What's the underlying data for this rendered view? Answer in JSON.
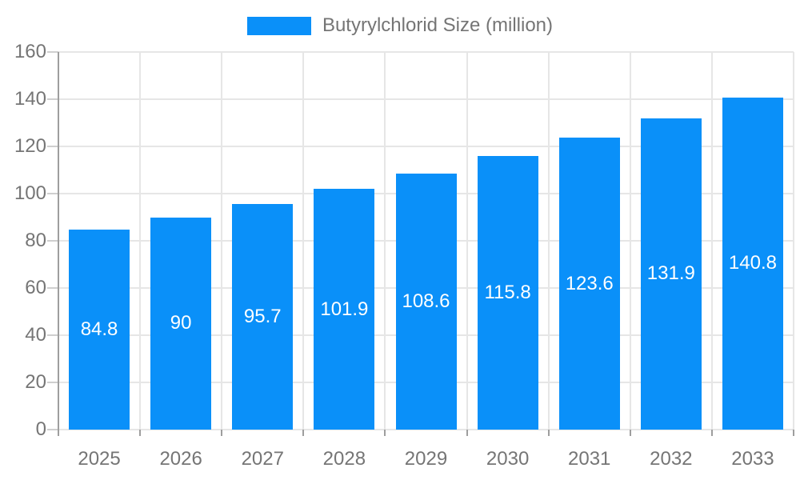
{
  "legend": {
    "label": "Butyrylchlorid Size (million)"
  },
  "colors": {
    "bar": "#0a90f9",
    "grid": "#e6e6e6",
    "axis": "#9e9e9e",
    "tick": "#cfcfcf",
    "text": "#757575",
    "value_label": "#ffffff",
    "background": "#ffffff"
  },
  "chart_data": {
    "type": "bar",
    "title": "Butyrylchlorid Size (million)",
    "categories": [
      "2025",
      "2026",
      "2027",
      "2028",
      "2029",
      "2030",
      "2031",
      "2032",
      "2033"
    ],
    "values": [
      84.8,
      90,
      95.7,
      101.9,
      108.6,
      115.8,
      123.6,
      131.9,
      140.8
    ],
    "series_name": "Butyrylchlorid Size (million)",
    "xlabel": "",
    "ylabel": "",
    "ylim": [
      0,
      160
    ],
    "ytick_step": 20,
    "yticks": [
      0,
      20,
      40,
      60,
      80,
      100,
      120,
      140,
      160
    ],
    "grid": true,
    "legend_position": "top-center",
    "value_label_position": "inside-center"
  }
}
